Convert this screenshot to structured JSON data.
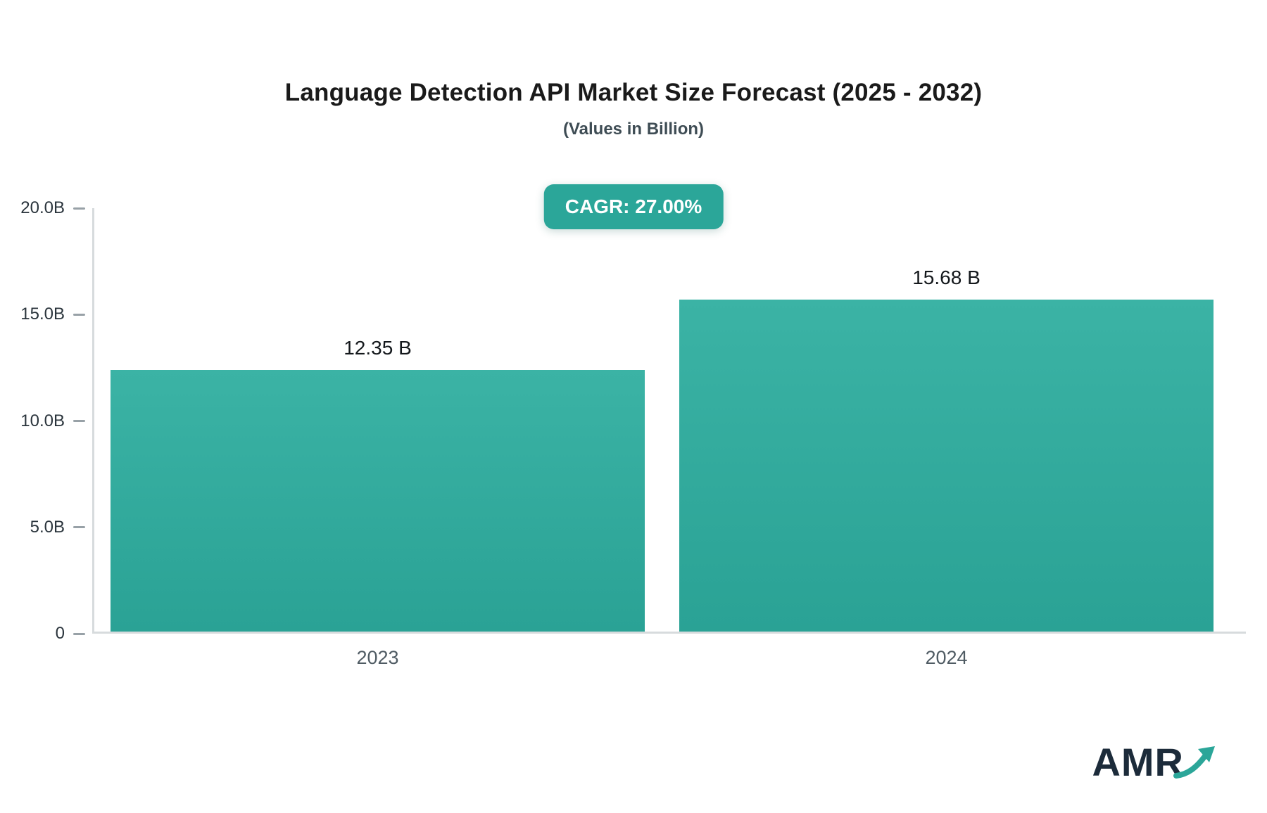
{
  "header": {
    "title": "Language Detection API Market Size Forecast (2025 - 2032)",
    "subtitle": "(Values in Billion)",
    "cagr_label": "CAGR: 27.00%"
  },
  "chart_data": {
    "type": "bar",
    "title": "Language Detection API Market Size Forecast (2025 - 2032)",
    "subtitle": "(Values in Billion)",
    "annotation": "CAGR: 27.00%",
    "categories": [
      "2023",
      "2024"
    ],
    "values": [
      12.35,
      15.68
    ],
    "value_labels": [
      "12.35 B",
      "15.68 B"
    ],
    "unit": "B",
    "xlabel": "",
    "ylabel": "",
    "ylim": [
      0,
      20
    ],
    "yticks": [
      {
        "value": 20,
        "label": "20.0B"
      },
      {
        "value": 15,
        "label": "15.0B"
      },
      {
        "value": 10,
        "label": "10.0B"
      },
      {
        "value": 5,
        "label": "5.0B"
      },
      {
        "value": 0,
        "label": "0"
      }
    ],
    "grid": false,
    "legend": false
  },
  "branding": {
    "logo_text": "AMR",
    "logo_icon": "trend-up-arrow-icon"
  },
  "colors": {
    "accent": "#2BA699",
    "badge_bg": "#2BA699",
    "badge_text": "#FFFFFF",
    "bar_top": "#3BB3A5",
    "bar_bottom": "#2AA295",
    "title_text": "#1A1A1A",
    "subtitle_text": "#3E4C54",
    "axis_line": "#D7DBDD",
    "tick_text": "#2A343C",
    "xlabel_text": "#4F5B63",
    "logo_text_color": "#1C2B3A"
  }
}
